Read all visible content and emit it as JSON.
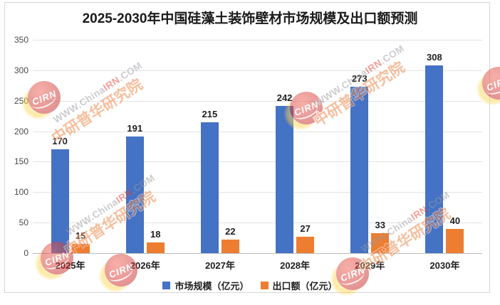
{
  "chart_data": {
    "type": "bar",
    "title": "2025-2030年中国硅藻土装饰壁材市场规模及出口额预测",
    "categories": [
      "2025年",
      "2026年",
      "2027年",
      "2028年",
      "2029年",
      "2030年"
    ],
    "series": [
      {
        "name": "市场规模（亿元）",
        "color": "#4472C4",
        "values": [
          170,
          191,
          215,
          242,
          273,
          308
        ]
      },
      {
        "name": "出口额（亿元）",
        "color": "#ED7D31",
        "values": [
          15,
          18,
          22,
          27,
          33,
          40
        ]
      }
    ],
    "xlabel": "",
    "ylabel": "",
    "ylim": [
      0,
      350
    ],
    "ytick_step": 50,
    "grid": true,
    "legend_position": "bottom"
  },
  "watermark": {
    "url_prefix": "WWW.China",
    "url_highlight": "IRN",
    "url_suffix": ".COM",
    "org_text": "中研普华研究院",
    "badge_text": "CIRN"
  },
  "colors": {
    "market_size_bar": "#4472C4",
    "export_bar": "#ED7D31",
    "gridline": "#e3e3e3",
    "axis_line": "#b9b9b9",
    "frame_border": "#d6d6d6",
    "watermark_orange": "#ef8040",
    "watermark_red": "#e2402f"
  }
}
